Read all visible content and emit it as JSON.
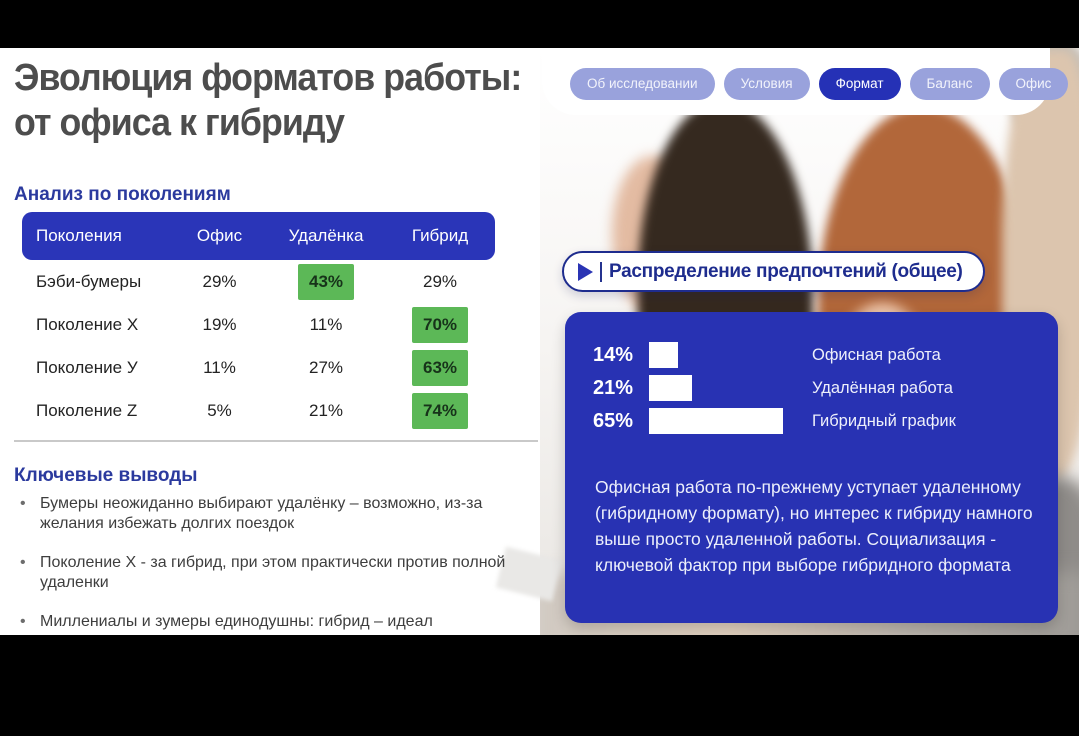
{
  "colors": {
    "accent_blue": "#2832b3",
    "header_blue": "#2a35b8",
    "heading_text_blue": "#2b3a9e",
    "pill_inactive": "#99a2dc",
    "pill_active": "#2531b6",
    "highlight_green": "#5cb857",
    "title_gray": "#4d4d4d",
    "letterbox": "#000000"
  },
  "title": {
    "line1": "Эволюция форматов работы:",
    "line2": "от офиса к гибриду"
  },
  "nav": {
    "tabs": [
      {
        "label": "Об исследовании",
        "active": false
      },
      {
        "label": "Условия",
        "active": false
      },
      {
        "label": "Формат",
        "active": true
      },
      {
        "label": "Баланс",
        "active": false
      },
      {
        "label": "Офис",
        "active": false
      }
    ]
  },
  "generations": {
    "heading": "Анализ по поколениям",
    "columns": {
      "c0": "Поколения",
      "c1": "Офис",
      "c2": "Удалёнка",
      "c3": "Гибрид"
    },
    "rows": [
      {
        "name": "Бэби-бумеры",
        "office": "29%",
        "remote": "43%",
        "hybrid": "29%",
        "highlight": "remote"
      },
      {
        "name": "Поколение X",
        "office": "19%",
        "remote": "11%",
        "hybrid": "70%",
        "highlight": "hybrid"
      },
      {
        "name": "Поколение У",
        "office": "11%",
        "remote": "27%",
        "hybrid": "63%",
        "highlight": "hybrid"
      },
      {
        "name": "Поколение Z",
        "office": "5%",
        "remote": "21%",
        "hybrid": "74%",
        "highlight": "hybrid"
      }
    ]
  },
  "conclusions": {
    "heading": "Ключевые выводы",
    "items": [
      "Бумеры неожиданно выбирают удалёнку – возможно, из-за желания избежать долгих поездок",
      "Поколение X - за гибрид, при этом практически против полной удаленки",
      "Миллениалы и зумеры единодушны: гибрид – идеал"
    ]
  },
  "distribution": {
    "badge_label": "Распределение предпочтений (общее)",
    "bars": [
      {
        "pct": "14%",
        "value": 14,
        "label": "Офисная работа"
      },
      {
        "pct": "21%",
        "value": 21,
        "label": "Удалённая работа"
      },
      {
        "pct": "65%",
        "value": 65,
        "label": "Гибридный график"
      }
    ],
    "note": "Офисная работа по-прежнему уступает удаленному (гибридному формату), но интерес к гибриду намного выше просто удаленной работы. Социализация - ключевой фактор при выборе гибридного формата"
  },
  "chart_data": [
    {
      "type": "table",
      "title": "Анализ по поколениям",
      "columns": [
        "Поколения",
        "Офис",
        "Удалёнка",
        "Гибрид"
      ],
      "rows": [
        [
          "Бэби-бумеры",
          "29%",
          "43%",
          "29%"
        ],
        [
          "Поколение X",
          "19%",
          "11%",
          "70%"
        ],
        [
          "Поколение У",
          "11%",
          "27%",
          "63%"
        ],
        [
          "Поколение Z",
          "5%",
          "21%",
          "74%"
        ]
      ],
      "highlighted_cells": [
        {
          "row": "Бэби-бумеры",
          "column": "Удалёнка",
          "value": "43%"
        },
        {
          "row": "Поколение X",
          "column": "Гибрид",
          "value": "70%"
        },
        {
          "row": "Поколение У",
          "column": "Гибрид",
          "value": "63%"
        },
        {
          "row": "Поколение Z",
          "column": "Гибрид",
          "value": "74%"
        }
      ]
    },
    {
      "type": "bar",
      "orientation": "horizontal",
      "title": "Распределение предпочтений (общее)",
      "categories": [
        "Офисная работа",
        "Удалённая работа",
        "Гибридный график"
      ],
      "values": [
        14,
        21,
        65
      ],
      "unit": "%",
      "xlim": [
        0,
        100
      ],
      "bar_color": "#ffffff",
      "background": "#2832b3",
      "grid": false,
      "legend_position": "right-of-bars"
    }
  ]
}
